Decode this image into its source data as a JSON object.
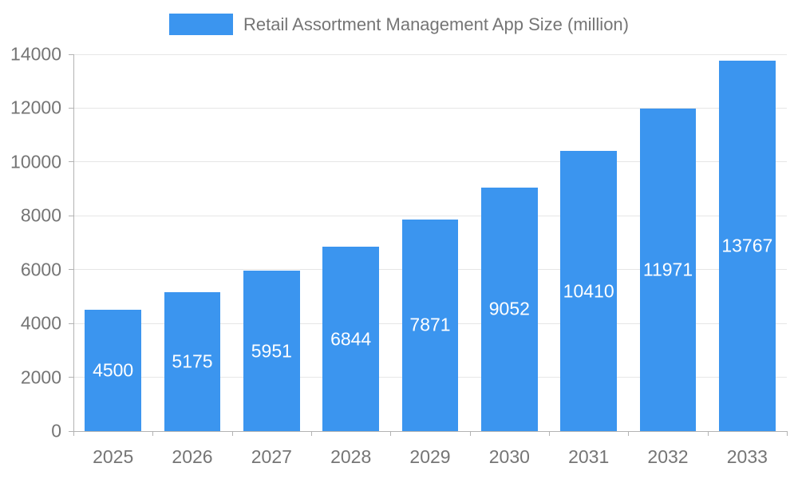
{
  "chart_data": {
    "type": "bar",
    "title": "Retail Assortment Management App Size (million)",
    "categories": [
      "2025",
      "2026",
      "2027",
      "2028",
      "2029",
      "2030",
      "2031",
      "2032",
      "2033"
    ],
    "values": [
      4500,
      5175,
      5951,
      6844,
      7871,
      9052,
      10410,
      11971,
      13767
    ],
    "xlabel": "",
    "ylabel": "",
    "ylim": [
      0,
      14000
    ],
    "yticks": [
      0,
      2000,
      4000,
      6000,
      8000,
      10000,
      12000,
      14000
    ],
    "grid": true,
    "legend_position": "top",
    "bar_labels_inside": true
  },
  "colors": {
    "bar": "#3b95ef",
    "bar_label": "#ffffff",
    "text": "#757575",
    "grid": "#e6e6e6",
    "axis": "#b3b3b3"
  }
}
